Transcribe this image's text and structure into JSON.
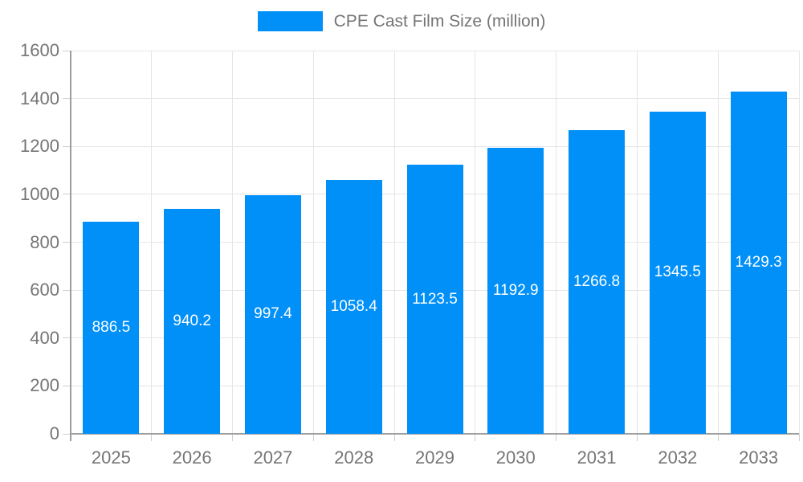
{
  "chart_data": {
    "type": "bar",
    "title": "CPE Cast Film Size (million)",
    "legend": [
      "CPE Cast Film Size (million)"
    ],
    "legend_position": "top",
    "categories": [
      "2025",
      "2026",
      "2027",
      "2028",
      "2029",
      "2030",
      "2031",
      "2032",
      "2033"
    ],
    "values": [
      886.5,
      940.2,
      997.4,
      1058.4,
      1123.5,
      1192.9,
      1266.8,
      1345.5,
      1429.3
    ],
    "value_label_decimals": 1,
    "xlabel": "",
    "ylabel": "",
    "ylim": [
      0,
      1600
    ],
    "y_ticks": [
      0,
      200,
      400,
      600,
      800,
      1000,
      1200,
      1400,
      1600
    ],
    "grid": true,
    "colors": {
      "bar": "#0090F8",
      "bar_value_text": "#FFFFFF",
      "axis_text": "#757575",
      "gridline": "#E5E5E5",
      "axis_line": "#9E9E9E",
      "tick_mark": "#CFCFCF",
      "background": "#FFFFFF"
    }
  }
}
